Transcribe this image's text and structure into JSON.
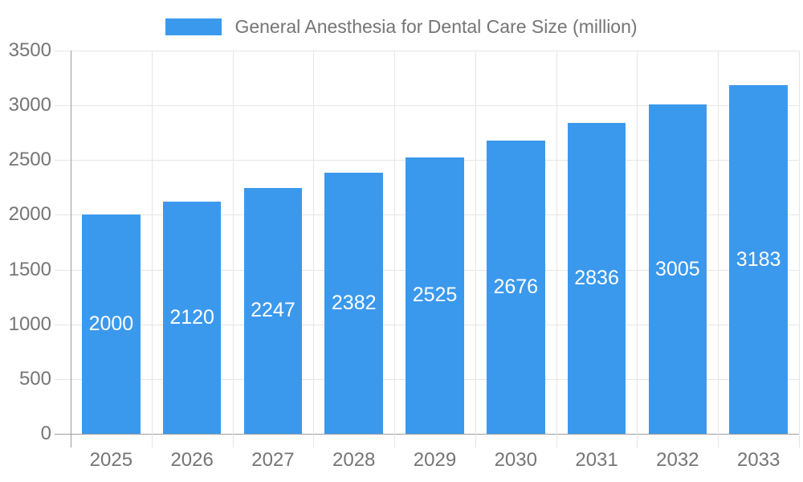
{
  "chart_data": {
    "type": "bar",
    "title": "General Anesthesia for Dental Care Size (million)",
    "categories": [
      "2025",
      "2026",
      "2027",
      "2028",
      "2029",
      "2030",
      "2031",
      "2032",
      "2033"
    ],
    "values": [
      2000,
      2120,
      2247,
      2382,
      2525,
      2676,
      2836,
      3005,
      3183
    ],
    "xlabel": "",
    "ylabel": "",
    "ylim": [
      0,
      3500
    ],
    "yticks": [
      0,
      500,
      1000,
      1500,
      2000,
      2500,
      3000,
      3500
    ],
    "grid": true,
    "legend_position": "top",
    "bar_value_labels_visible": true
  },
  "colors": {
    "bar": "#3B99ED",
    "bar_value_label": "#FFFFFF",
    "axis_text": "#757575",
    "axis_line": "#9E9E9E",
    "gridline": "#E6E6E6",
    "background": "#FFFFFF"
  }
}
